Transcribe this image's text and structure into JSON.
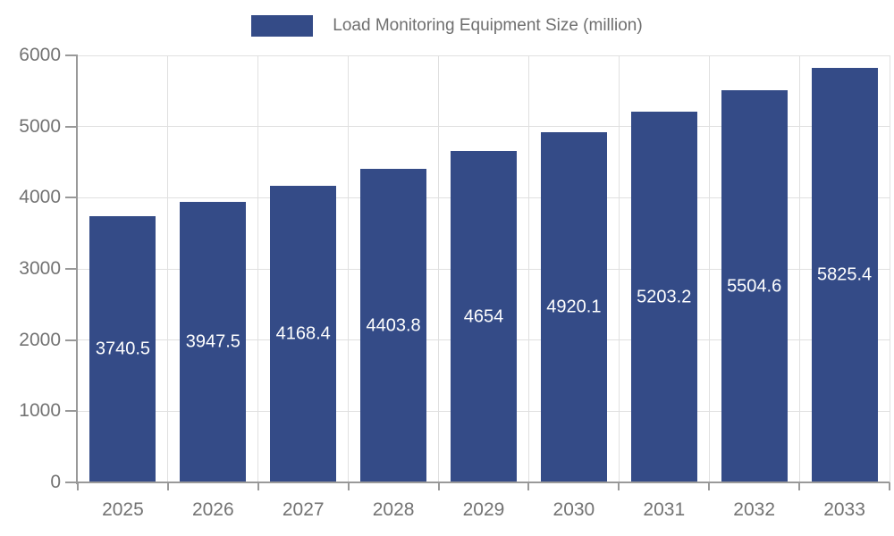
{
  "legend": {
    "label": "Load Monitoring Equipment Size (million)"
  },
  "colors": {
    "bar": "#344b87",
    "grid": "#e0e0e0",
    "axis": "#999999",
    "tick_label": "#737373",
    "legend_text": "#6f6f6f",
    "bar_label": "#ffffff",
    "background": "#ffffff"
  },
  "chart_data": {
    "type": "bar",
    "title": "Load Monitoring Equipment Size (million)",
    "categories": [
      "2025",
      "2026",
      "2027",
      "2028",
      "2029",
      "2030",
      "2031",
      "2032",
      "2033"
    ],
    "values": [
      3740.5,
      3947.5,
      4168.4,
      4403.8,
      4654,
      4920.1,
      5203.2,
      5504.6,
      5825.4
    ],
    "value_labels": [
      "3740.5",
      "3947.5",
      "4168.4",
      "4403.8",
      "4654",
      "4920.1",
      "5203.2",
      "5504.6",
      "5825.4"
    ],
    "xlabel": "",
    "ylabel": "",
    "ylim": [
      0,
      6000
    ],
    "ytick_step": 1000,
    "ytick_labels": [
      "0",
      "1000",
      "2000",
      "3000",
      "4000",
      "5000",
      "6000"
    ],
    "grid": true,
    "legend_position": "top-center",
    "bar_label_position": "center-inside"
  }
}
